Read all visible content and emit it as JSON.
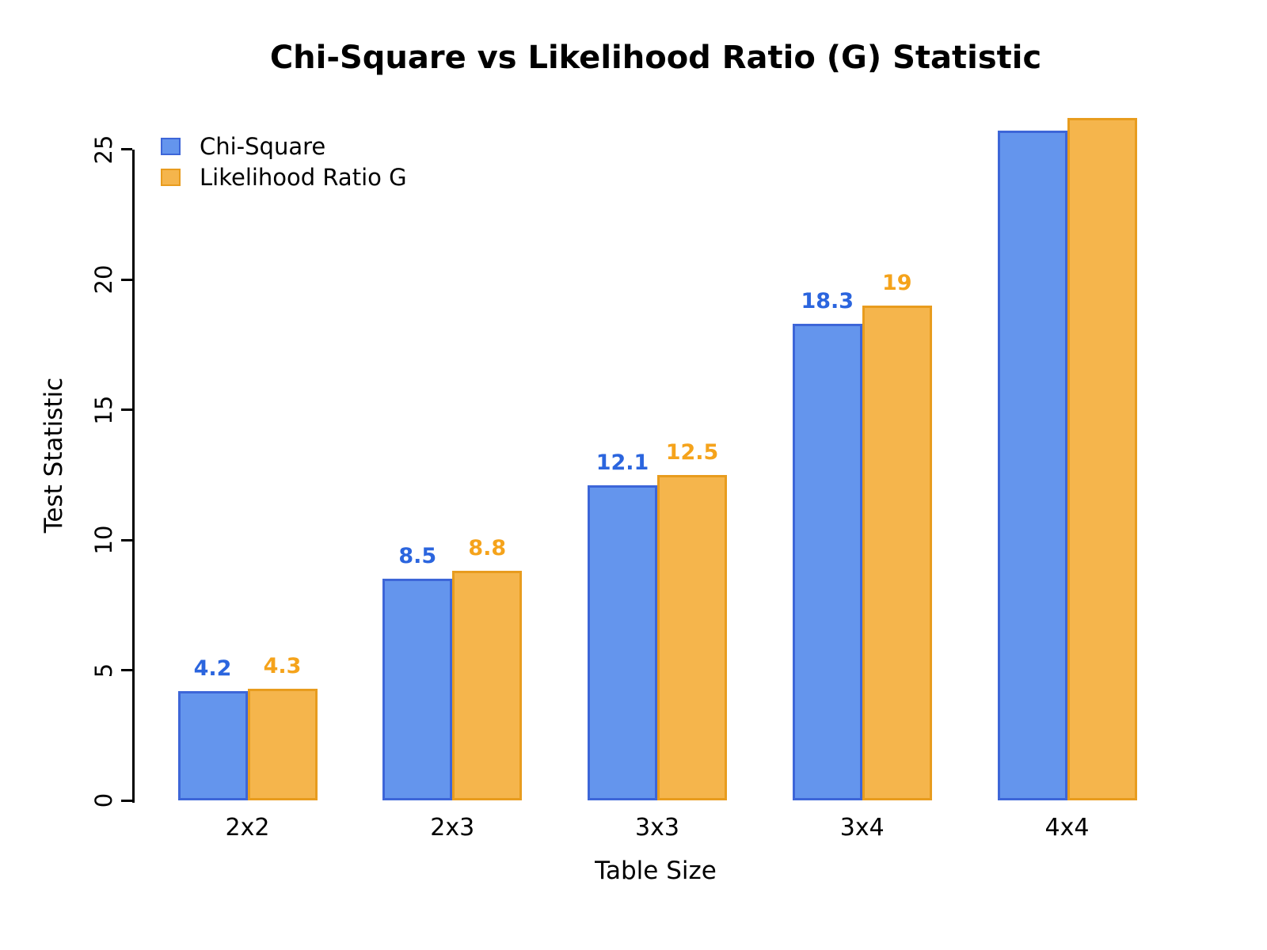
{
  "title": "Chi-Square vs Likelihood Ratio (G) Statistic",
  "legend": {
    "items": [
      {
        "label": "Chi-Square",
        "color_key": "blue"
      },
      {
        "label": "Likelihood Ratio G",
        "color_key": "orange"
      }
    ]
  },
  "colors": {
    "blue_fill": "#6495ED",
    "blue_border": "#3D66D8",
    "blue_label_text": "#2B65DE",
    "orange_fill": "#F5B54C",
    "orange_border": "#E89C1E",
    "orange_label_text": "#F5A31B",
    "axis": "#000000",
    "background": "#FFFFFF",
    "text": "#000000"
  },
  "chart_data": {
    "type": "bar",
    "title": "Chi-Square vs Likelihood Ratio (G) Statistic",
    "xlabel": "Table Size",
    "ylabel": "Test Statistic",
    "categories": [
      "2x2",
      "2x3",
      "3x3",
      "3x4",
      "4x4"
    ],
    "series": [
      {
        "name": "Chi-Square",
        "color_key": "blue",
        "values": [
          4.2,
          8.5,
          12.1,
          18.3,
          25.7
        ],
        "value_labels": [
          "4.2",
          "8.5",
          "12.1",
          "18.3",
          ""
        ]
      },
      {
        "name": "Likelihood Ratio G",
        "color_key": "orange",
        "values": [
          4.3,
          8.8,
          12.5,
          19,
          26.2
        ],
        "value_labels": [
          "4.3",
          "8.8",
          "12.5",
          "19",
          ""
        ]
      }
    ],
    "yticks": [
      0,
      5,
      10,
      15,
      20,
      25
    ],
    "ylim": [
      0,
      26.5
    ],
    "grid": false,
    "legend_position": "top-left"
  }
}
